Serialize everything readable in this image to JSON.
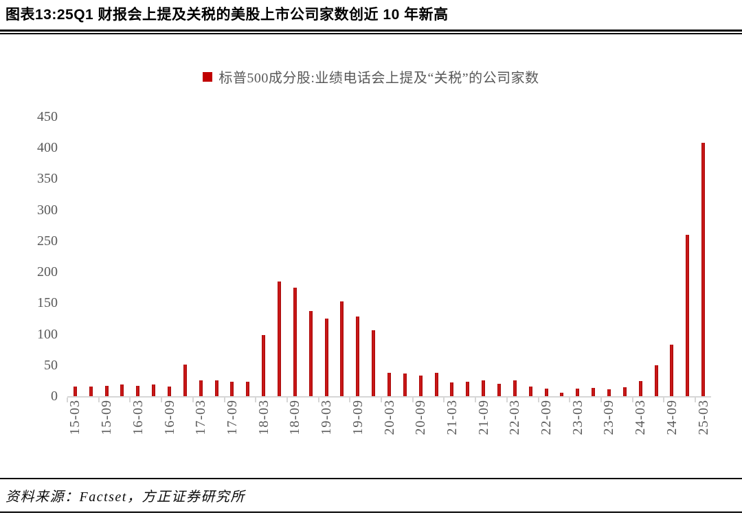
{
  "header": {
    "title": "图表13:25Q1 财报会上提及关税的美股上市公司家数创近 10 年新高"
  },
  "chart_data": {
    "type": "bar",
    "legend": "标普500成分股:业绩电话会上提及“关税”的公司家数",
    "legend_position": "top-center",
    "bar_color": "#C00000",
    "axis_text_color": "#595959",
    "axis_line_color": "#D6D6D6",
    "grid": false,
    "ylim": [
      0,
      450
    ],
    "y_ticks": [
      0,
      50,
      100,
      150,
      200,
      250,
      300,
      350,
      400,
      450
    ],
    "x_tick_interval": 2,
    "categories": [
      "15-03",
      "15-06",
      "15-09",
      "15-12",
      "16-03",
      "16-06",
      "16-09",
      "16-12",
      "17-03",
      "17-06",
      "17-09",
      "17-12",
      "18-03",
      "18-06",
      "18-09",
      "18-12",
      "19-03",
      "19-06",
      "19-09",
      "19-12",
      "20-03",
      "20-06",
      "20-09",
      "20-12",
      "21-03",
      "21-06",
      "21-09",
      "21-12",
      "22-03",
      "22-06",
      "22-09",
      "22-12",
      "23-03",
      "23-06",
      "23-09",
      "23-12",
      "24-03",
      "24-06",
      "24-09",
      "24-12",
      "25-03"
    ],
    "values": [
      16,
      16,
      17,
      19,
      17,
      19,
      16,
      51,
      25,
      26,
      23,
      23,
      98,
      185,
      175,
      137,
      125,
      153,
      128,
      106,
      38,
      37,
      33,
      38,
      22,
      23,
      25,
      20,
      26,
      16,
      12,
      6,
      12,
      13,
      11,
      14,
      24,
      50,
      83,
      260,
      408
    ]
  },
  "footer": {
    "source": "资料来源：Factset，方正证券研究所"
  }
}
